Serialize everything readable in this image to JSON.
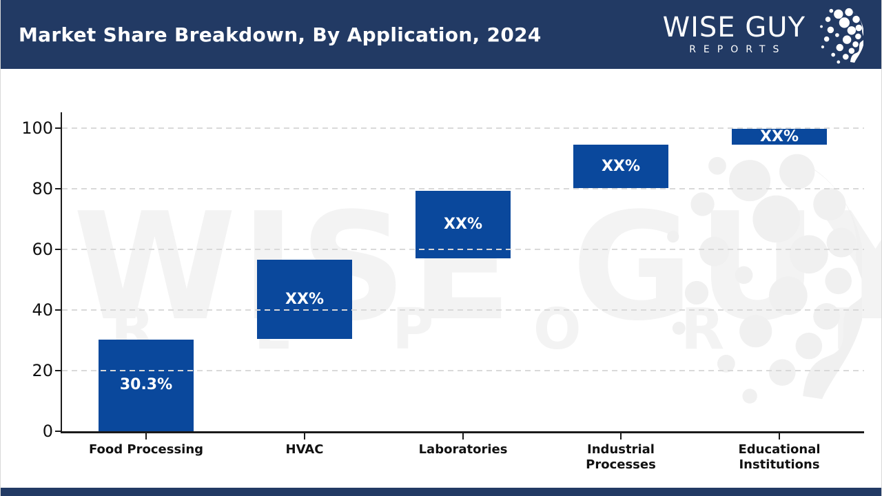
{
  "header": {
    "title": "Market Share Breakdown, By Application, 2024",
    "logo": {
      "primary": "WISE GUY",
      "secondary": "REPORTS",
      "icon": "dotted-head-profile"
    }
  },
  "watermark": {
    "primary": "WISE GUY",
    "secondary": "R E P O R T S",
    "icon": "dotted-head-profile"
  },
  "colors": {
    "header_bg": "#223a64",
    "footer_bg": "#223a64",
    "bar": "#0a489c",
    "bar_label": "#ffffff",
    "gridline": "#d9d9d9",
    "axis": "#1a1a1a",
    "watermark": "#f3f3f3"
  },
  "chart_data": {
    "type": "bar",
    "variant": "waterfall",
    "title": "Market Share Breakdown, By Application, 2024",
    "xlabel": "",
    "ylabel": "",
    "legend": "none",
    "grid": "horizontal-dashed",
    "yticks": [
      0,
      20,
      40,
      60,
      80,
      100
    ],
    "ylim": [
      0,
      105
    ],
    "categories": [
      "Food Processing",
      "HVAC",
      "Laboratories",
      "Industrial\nProcesses",
      "Educational\nInstitutions"
    ],
    "bars": [
      {
        "category": "Food Processing",
        "start": 0,
        "end": 30.3,
        "label": "30.3%"
      },
      {
        "category": "HVAC",
        "start": 30.4,
        "end": 56.6,
        "label": "XX%"
      },
      {
        "category": "Laboratories",
        "start": 57.0,
        "end": 79.3,
        "label": "XX%"
      },
      {
        "category": "Industrial Processes",
        "start": 80.2,
        "end": 94.5,
        "label": "XX%"
      },
      {
        "category": "Educational Institutions",
        "start": 94.5,
        "end": 99.8,
        "label": "XX%"
      }
    ]
  }
}
